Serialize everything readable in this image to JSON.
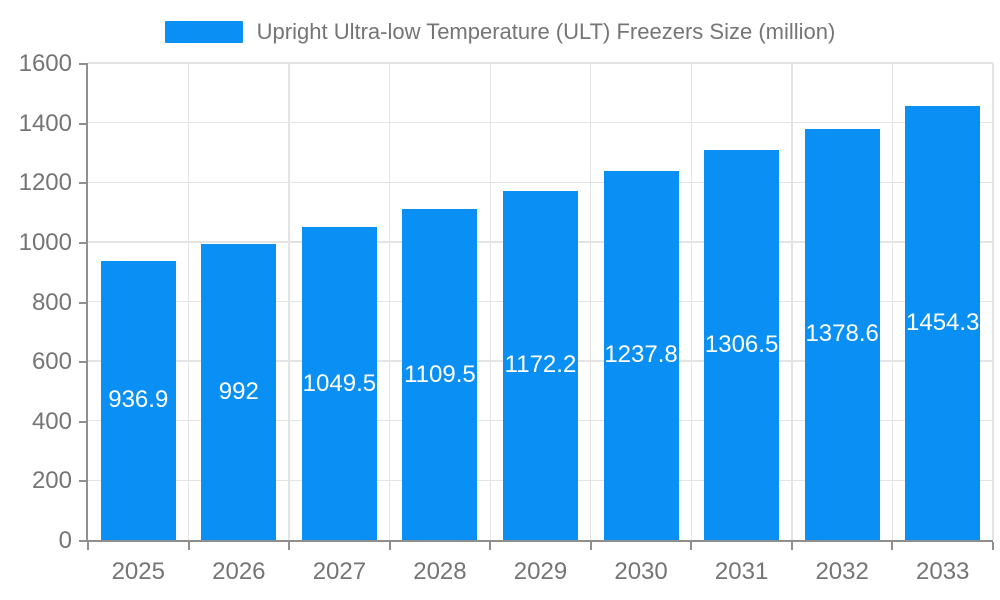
{
  "chart_data": {
    "type": "bar",
    "title": "Upright Ultra-low Temperature (ULT) Freezers Size (million)",
    "legend_position": "top",
    "categories": [
      "2025",
      "2026",
      "2027",
      "2028",
      "2029",
      "2030",
      "2031",
      "2032",
      "2033"
    ],
    "values": [
      936.9,
      992,
      1049.5,
      1109.5,
      1172.2,
      1237.8,
      1306.5,
      1378.6,
      1454.3
    ],
    "value_labels": [
      "936.9",
      "992",
      "1049.5",
      "1109.5",
      "1172.2",
      "1237.8",
      "1306.5",
      "1378.6",
      "1454.3"
    ],
    "xlabel": "",
    "ylabel": "",
    "ylim": [
      0,
      1600
    ],
    "yticks": [
      0,
      200,
      400,
      600,
      800,
      1000,
      1200,
      1400,
      1600
    ],
    "grid": true,
    "bar_color": "#0a90f5",
    "bar_label_color": "#ffffff",
    "axis_label_color": "#757575",
    "grid_color": "#e4e4e4",
    "axis_line_color": "#8f8f8f"
  }
}
